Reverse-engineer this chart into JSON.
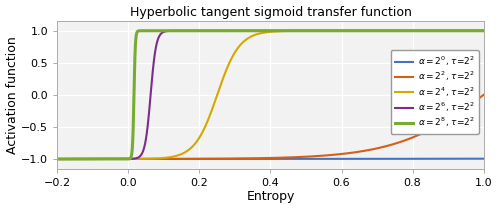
{
  "title": "Hyperbolic tangent sigmoid transfer function",
  "xlabel": "Entropy",
  "ylabel": "Activation function",
  "xlim": [
    -0.2,
    1.0
  ],
  "ylim": [
    -1.15,
    1.15
  ],
  "xticks": [
    -0.2,
    0.0,
    0.2,
    0.4,
    0.6,
    0.8,
    1.0
  ],
  "yticks": [
    -1,
    -0.5,
    0,
    0.5,
    1
  ],
  "series": [
    {
      "alpha": 1,
      "tau": 4,
      "color": "#4472C4",
      "lw": 1.5
    },
    {
      "alpha": 4,
      "tau": 4,
      "color": "#D45F17",
      "lw": 1.5
    },
    {
      "alpha": 16,
      "tau": 4,
      "color": "#D4A800",
      "lw": 1.5
    },
    {
      "alpha": 64,
      "tau": 4,
      "color": "#7B2D8B",
      "lw": 1.5
    },
    {
      "alpha": 256,
      "tau": 4,
      "color": "#77AC30",
      "lw": 2.2
    }
  ],
  "legend_labels": [
    "$\\alpha = 2^0$, $\\tau$=$2^2$",
    "$\\alpha = 2^2$, $\\tau$=$2^2$",
    "$\\alpha = 2^4$, $\\tau$=$2^2$",
    "$\\alpha = 2^6$, $\\tau$=$2^2$",
    "$\\alpha = 2^8$, $\\tau$=$2^2$"
  ],
  "plot_bg": "#F2F2F2",
  "fig_bg": "#FFFFFF",
  "grid_color": "#FFFFFF",
  "title_fontsize": 9,
  "label_fontsize": 9,
  "tick_fontsize": 8,
  "legend_fontsize": 6.5
}
